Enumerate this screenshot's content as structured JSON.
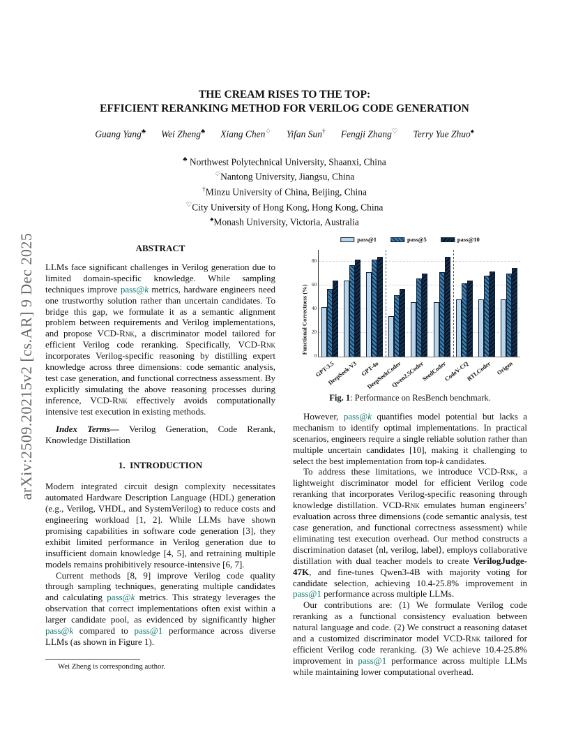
{
  "arxiv_stamp": "arXiv:2509.20215v2  [cs.AR]  9 Dec 2025",
  "title": {
    "line1": "THE CREAM RISES TO THE TOP:",
    "line2": "EFFICIENT RERANKING METHOD FOR VERILOG CODE GENERATION"
  },
  "authors": [
    {
      "name": "Guang Yang",
      "mark": "♣"
    },
    {
      "name": "Wei Zheng",
      "mark": "♣"
    },
    {
      "name": "Xiang Chen",
      "mark": "♢"
    },
    {
      "name": "Yifan Sun",
      "mark": "†"
    },
    {
      "name": "Fengji Zhang",
      "mark": "♡"
    },
    {
      "name": "Terry Yue Zhuo",
      "mark": "♠"
    }
  ],
  "affiliations": [
    {
      "mark": "♣",
      "text": " Northwest Polytechnical University, Shaanxi, China"
    },
    {
      "mark": "♢",
      "text": "Nantong University, Jiangsu, China"
    },
    {
      "mark": "†",
      "text": "Minzu University of China, Beijing, China"
    },
    {
      "mark": "♡",
      "text": "City University of Hong Kong, Hong Kong, China"
    },
    {
      "mark": "♠",
      "text": "Monash University, Victoria, Australia"
    }
  ],
  "abstract": {
    "heading": "ABSTRACT",
    "paragraph": [
      {
        "t": "LLMs face significant challenges in Verilog generation due to limited domain-specific knowledge. While sampling techniques improve "
      },
      {
        "t": "pass@",
        "s": "teal"
      },
      {
        "t": "k",
        "s": "ti"
      },
      {
        "t": " metrics, hardware engineers need one trustworthy solution rather than uncertain candidates. To bridge this gap, we formulate it as a semantic alignment problem between requirements and Verilog implementations, and propose "
      },
      {
        "t": "VCD-Rnk",
        "s": "sc"
      },
      {
        "t": ", a discriminator model tailored for efficient Verilog code reranking. Specifically, "
      },
      {
        "t": "VCD-Rnk",
        "s": "sc"
      },
      {
        "t": " incorporates Verilog-specific reasoning by distilling expert knowledge across three dimensions: code semantic analysis, test case generation, and functional correctness assessment. By explicitly simulating the above reasoning processes during inference, "
      },
      {
        "t": "VCD-Rnk",
        "s": "sc"
      },
      {
        "t": " effectively avoids computationally intensive test execution in existing methods."
      }
    ],
    "index_terms": [
      {
        "t": "Index Terms— ",
        "s": "bi"
      },
      {
        "t": "Verilog Generation, Code Rerank, Knowledge Distillation"
      }
    ]
  },
  "intro": {
    "heading": "1.  INTRODUCTION",
    "p1": [
      {
        "t": "Modern integrated circuit design complexity necessitates automated Hardware Description Language (HDL) generation (e.g., Verilog, VHDL, and SystemVerilog) to reduce costs and engineering workload [1, 2]. While LLMs have shown promising capabilities in software code generation [3], they exhibit limited performance in Verilog generation due to insufficient domain knowledge [4, 5], and retraining multiple models remains prohibitively resource-intensive [6, 7]."
      }
    ],
    "p2": [
      {
        "t": "Current methods [8, 9] improve Verilog code quality through sampling techniques, generating multiple candidates and calculating "
      },
      {
        "t": "pass@",
        "s": "teal"
      },
      {
        "t": "k",
        "s": "ti"
      },
      {
        "t": " metrics. This strategy leverages the observation that correct implementations often exist within a larger candidate pool, as evidenced by significantly higher "
      },
      {
        "t": "pass@",
        "s": "teal"
      },
      {
        "t": "k",
        "s": "ti"
      },
      {
        "t": " compared to "
      },
      {
        "t": "pass@1",
        "s": "teal"
      },
      {
        "t": " performance across diverse LLMs (as shown in Figure 1)."
      }
    ]
  },
  "figure": {
    "caption_label": "Fig. 1",
    "caption_rest": ": Performance on ResBench benchmark."
  },
  "right_paragraphs": {
    "p1": [
      {
        "t": "However, "
      },
      {
        "t": "pass@",
        "s": "teal"
      },
      {
        "t": "k",
        "s": "ti"
      },
      {
        "t": " quantifies model potential but lacks a mechanism to identify optimal implementations. In practical scenarios, engineers require a single reliable solution rather than multiple uncertain candidates [10], making it challenging to select the best implementation from top-"
      },
      {
        "t": "k",
        "s": "i"
      },
      {
        "t": " candidates."
      }
    ],
    "p2": [
      {
        "t": "To address these limitations, we introduce "
      },
      {
        "t": "VCD-Rnk",
        "s": "sc"
      },
      {
        "t": ", a lightweight discriminator model for efficient Verilog code reranking that incorporates Verilog-specific reasoning through knowledge distillation. "
      },
      {
        "t": "VCD-Rnk",
        "s": "sc"
      },
      {
        "t": " emulates human engineers’ evaluation across three dimensions (code semantic analysis, test case generation, and functional correctness assessment) while eliminating test execution overhead. Our method constructs a discrimination dataset ⟨nl, verilog, label⟩, employs collaborative distillation with dual teacher models to create "
      },
      {
        "t": "VerilogJudge-47K",
        "s": "b"
      },
      {
        "t": ", and fine-tunes Qwen3-4B with majority voting for candidate selection, achieving 10.4-25.8% improvement in "
      },
      {
        "t": "pass@1",
        "s": "teal"
      },
      {
        "t": " performance across multiple LLMs."
      }
    ],
    "p3": [
      {
        "t": "Our contributions are: (1) We formulate Verilog code reranking as a functional consistency evaluation between natural language and code. (2) We construct a reasoning dataset and a customized discriminator model "
      },
      {
        "t": "VCD-Rnk",
        "s": "sc"
      },
      {
        "t": " tailored for efficient Verilog code reranking. (3) We achieve 10.4-25.8% improvement in "
      },
      {
        "t": "pass@1",
        "s": "teal"
      },
      {
        "t": " performance across multiple LLMs while maintaining lower computational overhead."
      }
    ]
  },
  "footnote": "Wei Zheng is corresponding author.",
  "colors": {
    "accent_teal": "#0e7670",
    "bar_pass1": "#b9d6ec",
    "bar_pass5": "#3d7fb0",
    "bar_pass10": "#17304f",
    "stamp_gray": "#666666"
  },
  "chart_data": {
    "type": "bar",
    "title": "",
    "xlabel": "",
    "ylabel": "Functional Correctness (%)",
    "ylim": [
      0,
      90
    ],
    "yticks": [
      0,
      20,
      40,
      60,
      80
    ],
    "grid": "dashed horizontal at yticks",
    "legend_position": "top",
    "categories": [
      "GPT-3.5",
      "DeepSeek-V3",
      "GPT-4o",
      "DeepSeekCoder",
      "Qwen2.5Coder",
      "SeedCoder",
      "CodeV-CQ",
      "RTLCoder",
      "Origen"
    ],
    "series": [
      {
        "name": "pass@1",
        "values": [
          42,
          64,
          71,
          34,
          46,
          46,
          48,
          48,
          48
        ]
      },
      {
        "name": "pass@5",
        "values": [
          57,
          77,
          82,
          52,
          66,
          71,
          62,
          68,
          70
        ]
      },
      {
        "name": "pass@10",
        "values": [
          64,
          82,
          84,
          57,
          70,
          84,
          64,
          72,
          75
        ]
      }
    ],
    "group_separators_after": [
      "GPT-4o",
      "SeedCoder"
    ]
  }
}
